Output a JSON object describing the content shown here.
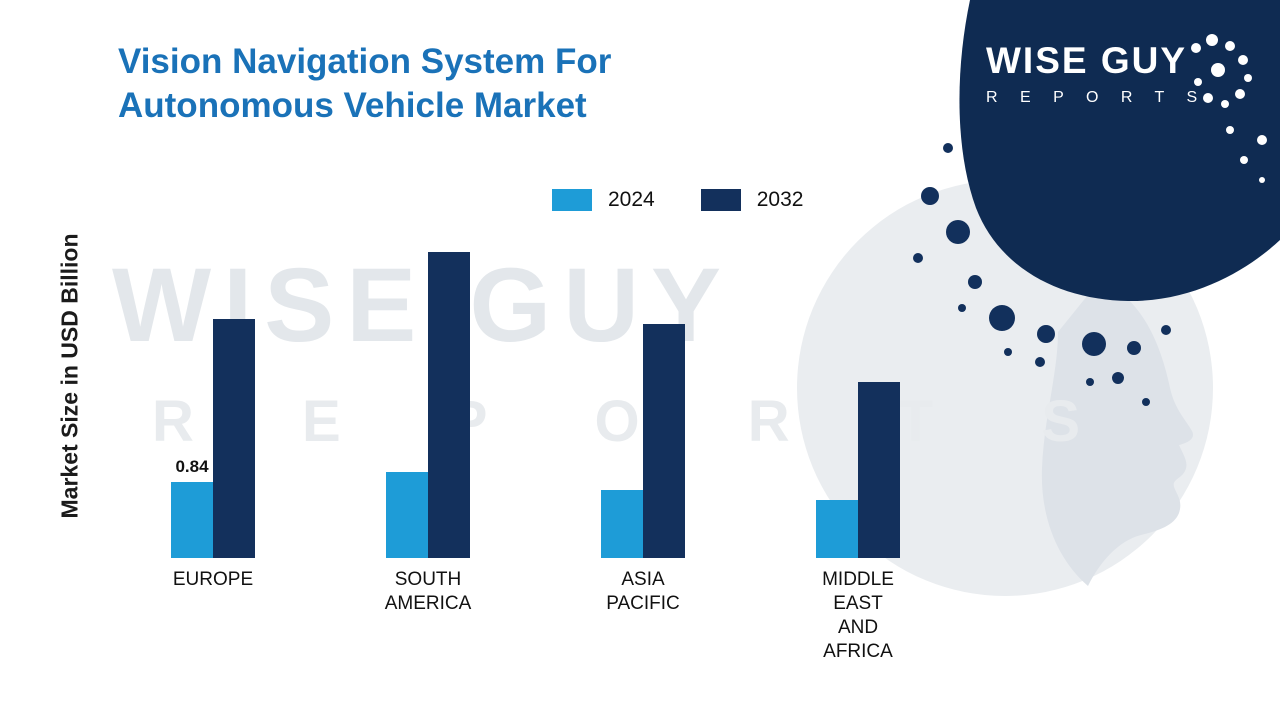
{
  "title": {
    "line1": "Vision Navigation System For",
    "line2": "Autonomous Vehicle Market"
  },
  "y_axis_label": "Market Size in USD Billion",
  "logo": {
    "name": "WISE GUY",
    "subtitle": "R E P O R T S"
  },
  "watermark": {
    "line1": "WISE GUY",
    "line2": "R E P O R T S"
  },
  "colors": {
    "title_blue": "#1A72B8",
    "bar_2024": "#1E9CD7",
    "bar_2032": "#13305C",
    "logo_background": "#0F2B52",
    "watermark_gray": "#E3E7EB"
  },
  "chart_data": {
    "type": "bar",
    "title": "Vision Navigation System For Autonomous Vehicle Market",
    "xlabel": "",
    "ylabel": "Market Size in USD Billion",
    "categories": [
      "EUROPE",
      "SOUTH AMERICA",
      "ASIA PACIFIC",
      "MIDDLE EAST AND AFRICA"
    ],
    "category_display_lines": [
      [
        "EUROPE"
      ],
      [
        "SOUTH",
        "AMERICA"
      ],
      [
        "ASIA",
        "PACIFIC"
      ],
      [
        "MIDDLE",
        "EAST",
        "AND",
        "AFRICA"
      ]
    ],
    "series": [
      {
        "name": "2024",
        "color": "#1E9CD7",
        "values": [
          0.84,
          0.95,
          0.75,
          0.64
        ]
      },
      {
        "name": "2032",
        "color": "#13305C",
        "values": [
          2.65,
          3.4,
          2.6,
          1.95
        ]
      }
    ],
    "ylim": [
      0,
      3.9
    ],
    "grid": false,
    "legend_position": "top",
    "data_labels": [
      {
        "series": "2024",
        "category": "EUROPE",
        "text": "0.84"
      }
    ]
  }
}
